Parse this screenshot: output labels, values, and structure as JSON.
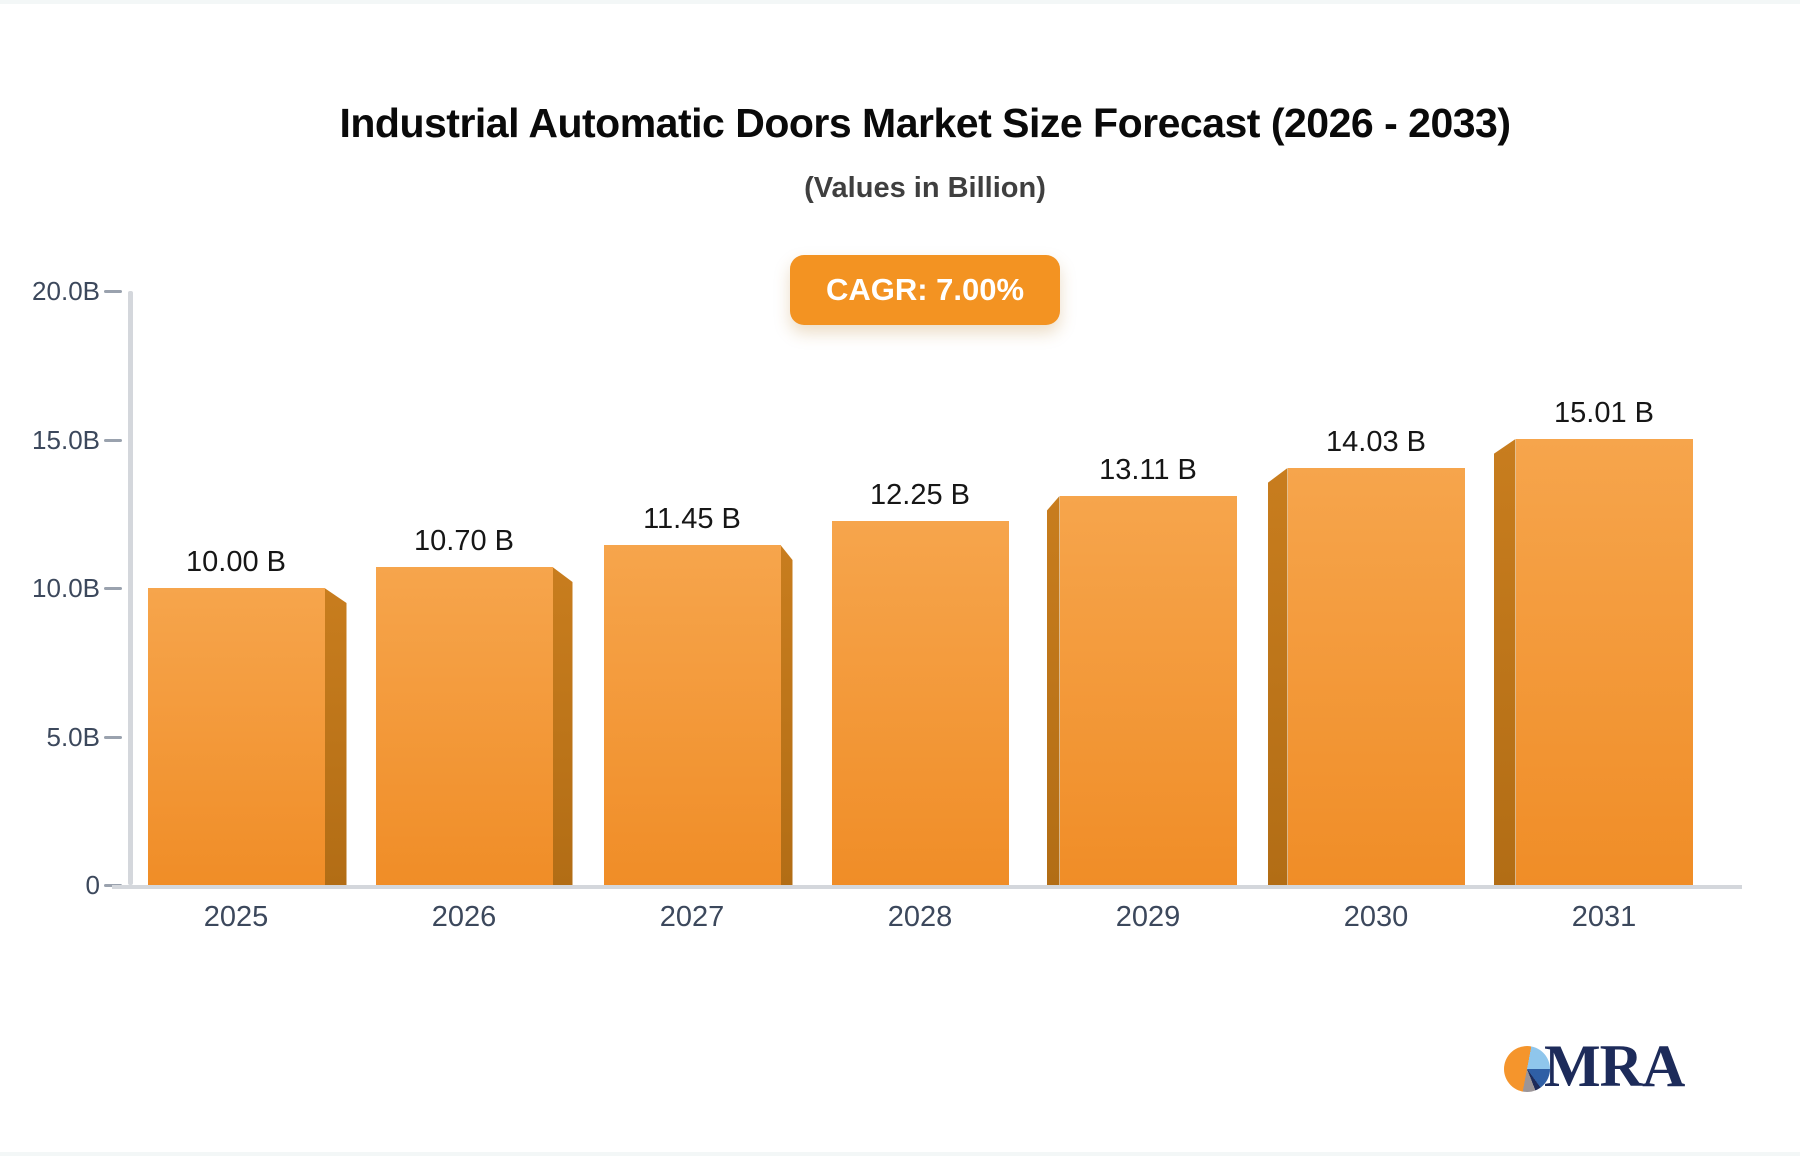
{
  "header": {
    "title": "Industrial Automatic Doors Market Size Forecast (2026 - 2033)",
    "subtitle": "(Values in Billion)",
    "cagr_badge": "CAGR: 7.00%"
  },
  "logo": {
    "text": "MRA"
  },
  "colors": {
    "accent_orange": "#f39322",
    "bar_gradient_top": "#f6a54c",
    "bar_gradient_bottom": "#f08d27",
    "bar_side_top": "#c87d1e",
    "bar_side_bottom": "#b26d15",
    "axis_line": "#d4d7dc",
    "tick": "#9aa2ae",
    "axis_text": "#3c485c",
    "value_text": "#161616",
    "title_text": "#0a0a0a",
    "subtitle_text": "#3f3f3f",
    "logo_navy": "#1d2b5a",
    "logo_orange": "#f5952c",
    "logo_lightblue": "#8fc6ec",
    "logo_blue": "#2f5fa5",
    "logo_gray": "#9b9598"
  },
  "chart_data": {
    "type": "bar",
    "title": "Industrial Automatic Doors Market Size Forecast (2026 - 2033)",
    "subtitle": "(Values in Billion)",
    "annotation": "CAGR: 7.00%",
    "categories": [
      "2025",
      "2026",
      "2027",
      "2028",
      "2029",
      "2030",
      "2031"
    ],
    "values": [
      10.0,
      10.7,
      11.45,
      12.25,
      13.11,
      14.03,
      15.01
    ],
    "value_labels": [
      "10.00 B",
      "10.70 B",
      "11.45 B",
      "12.25 B",
      "13.11 B",
      "14.03 B",
      "15.01 B"
    ],
    "xlabel": "",
    "ylabel": "",
    "ylim": [
      0,
      20
    ],
    "yticks": [
      {
        "value": 20,
        "label": "20.0B"
      },
      {
        "value": 15,
        "label": "15.0B"
      },
      {
        "value": 10,
        "label": "10.0B"
      },
      {
        "value": 5,
        "label": "5.0B"
      },
      {
        "value": 0,
        "label": "0"
      }
    ],
    "grid": false,
    "legend": "none",
    "bar_style": "3d-orange-gradient"
  }
}
